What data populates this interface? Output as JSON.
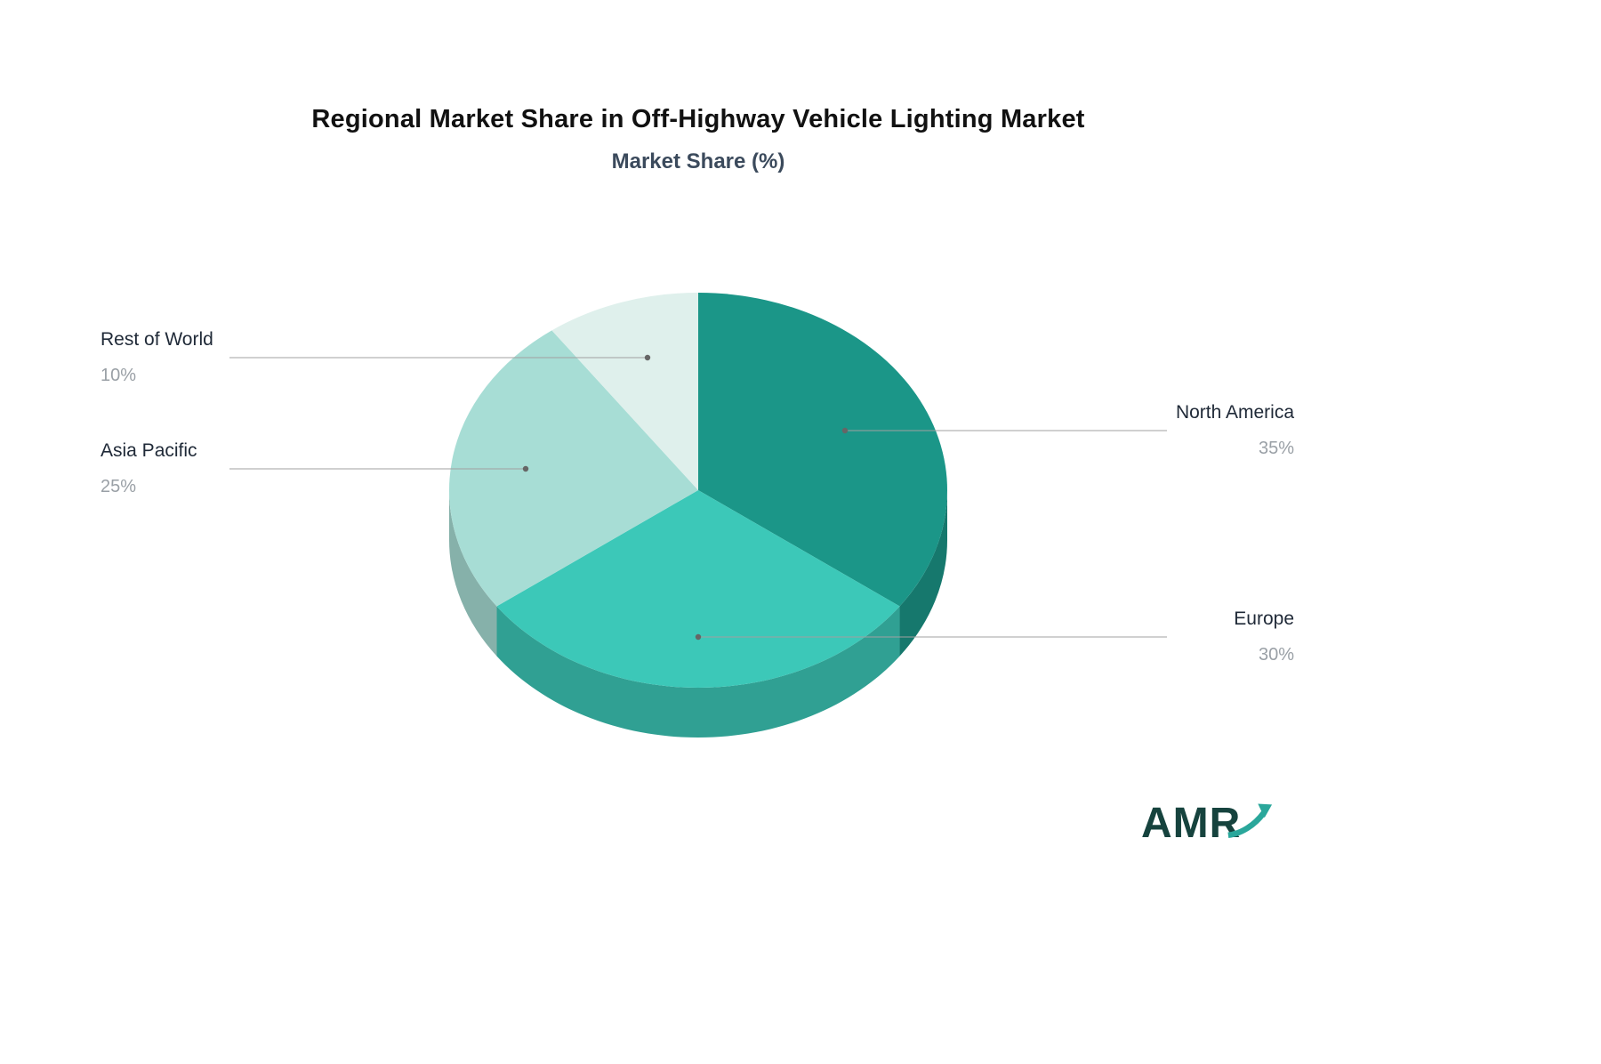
{
  "header": {
    "title": "Regional Market Share in Off-Highway Vehicle Lighting Market",
    "subtitle": "Market Share (%)"
  },
  "chart_data": {
    "type": "pie",
    "style": "3d",
    "title": "Regional Market Share in Off-Highway Vehicle Lighting Market",
    "subtitle": "Market Share (%)",
    "unit": "%",
    "direction": "clockwise",
    "start_angle_deg": 0,
    "legend_position": "none",
    "labels": [
      "North America",
      "Europe",
      "Asia Pacific",
      "Rest of World"
    ],
    "values": [
      35,
      30,
      25,
      10
    ],
    "value_labels": [
      "35%",
      "30%",
      "25%",
      "10%"
    ],
    "colors": [
      "#1b9688",
      "#3cc8b8",
      "#a7ddd5",
      "#dff0ec"
    ],
    "callout_sides": [
      "right",
      "right",
      "left",
      "left"
    ]
  },
  "branding": {
    "logo_text": "AMR"
  },
  "colors": {
    "title": "#111111",
    "subtitle": "#3b4a5c",
    "label_text": "#1f2937",
    "value_text": "#9aa0a6",
    "leader_line": "#a0a0a0",
    "leader_dot": "#666666",
    "logo": "#16433e",
    "logo_arrow": "#2aa79b"
  }
}
